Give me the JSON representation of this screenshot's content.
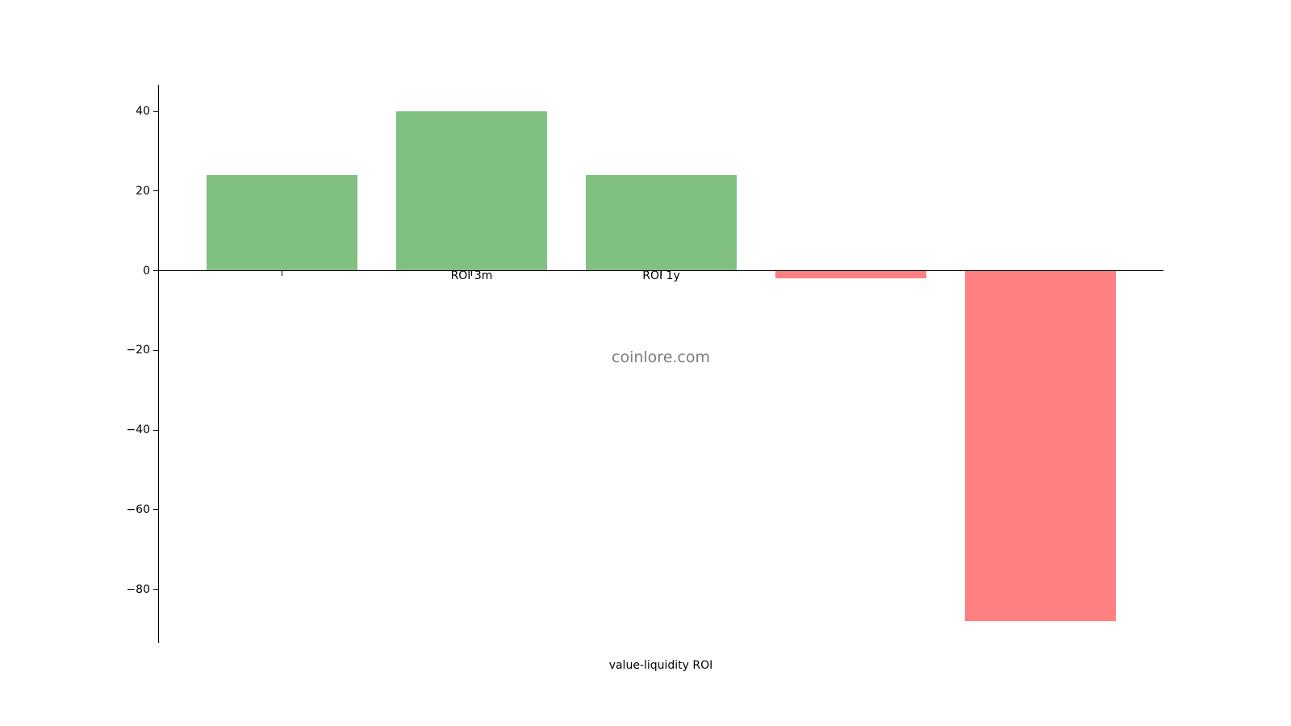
{
  "figure": {
    "watermark": "coinlore.com",
    "xlabel": "value-liquidity ROI"
  },
  "chart_data": {
    "type": "bar",
    "categories": [
      "",
      "ROI 3m",
      "ROI 1y",
      "",
      ""
    ],
    "values": [
      24,
      40,
      24,
      -2,
      -88
    ],
    "title": "",
    "xlabel": "value-liquidity ROI",
    "ylabel": "",
    "ylim": [
      -93.5,
      47
    ],
    "yticks": [
      40,
      20,
      0,
      -20,
      -40,
      -60,
      -80
    ],
    "ytick_labels": [
      "40",
      "20",
      "0",
      "−20",
      "−40",
      "−60",
      "−80"
    ],
    "grid": false,
    "legend": false,
    "watermark": "coinlore.com",
    "colors": {
      "positive_bar": "#80c080",
      "negative_bar": "#ff8080",
      "axis": "#000000",
      "watermark": "#7d7d7d",
      "tick_label": "#000000"
    }
  }
}
